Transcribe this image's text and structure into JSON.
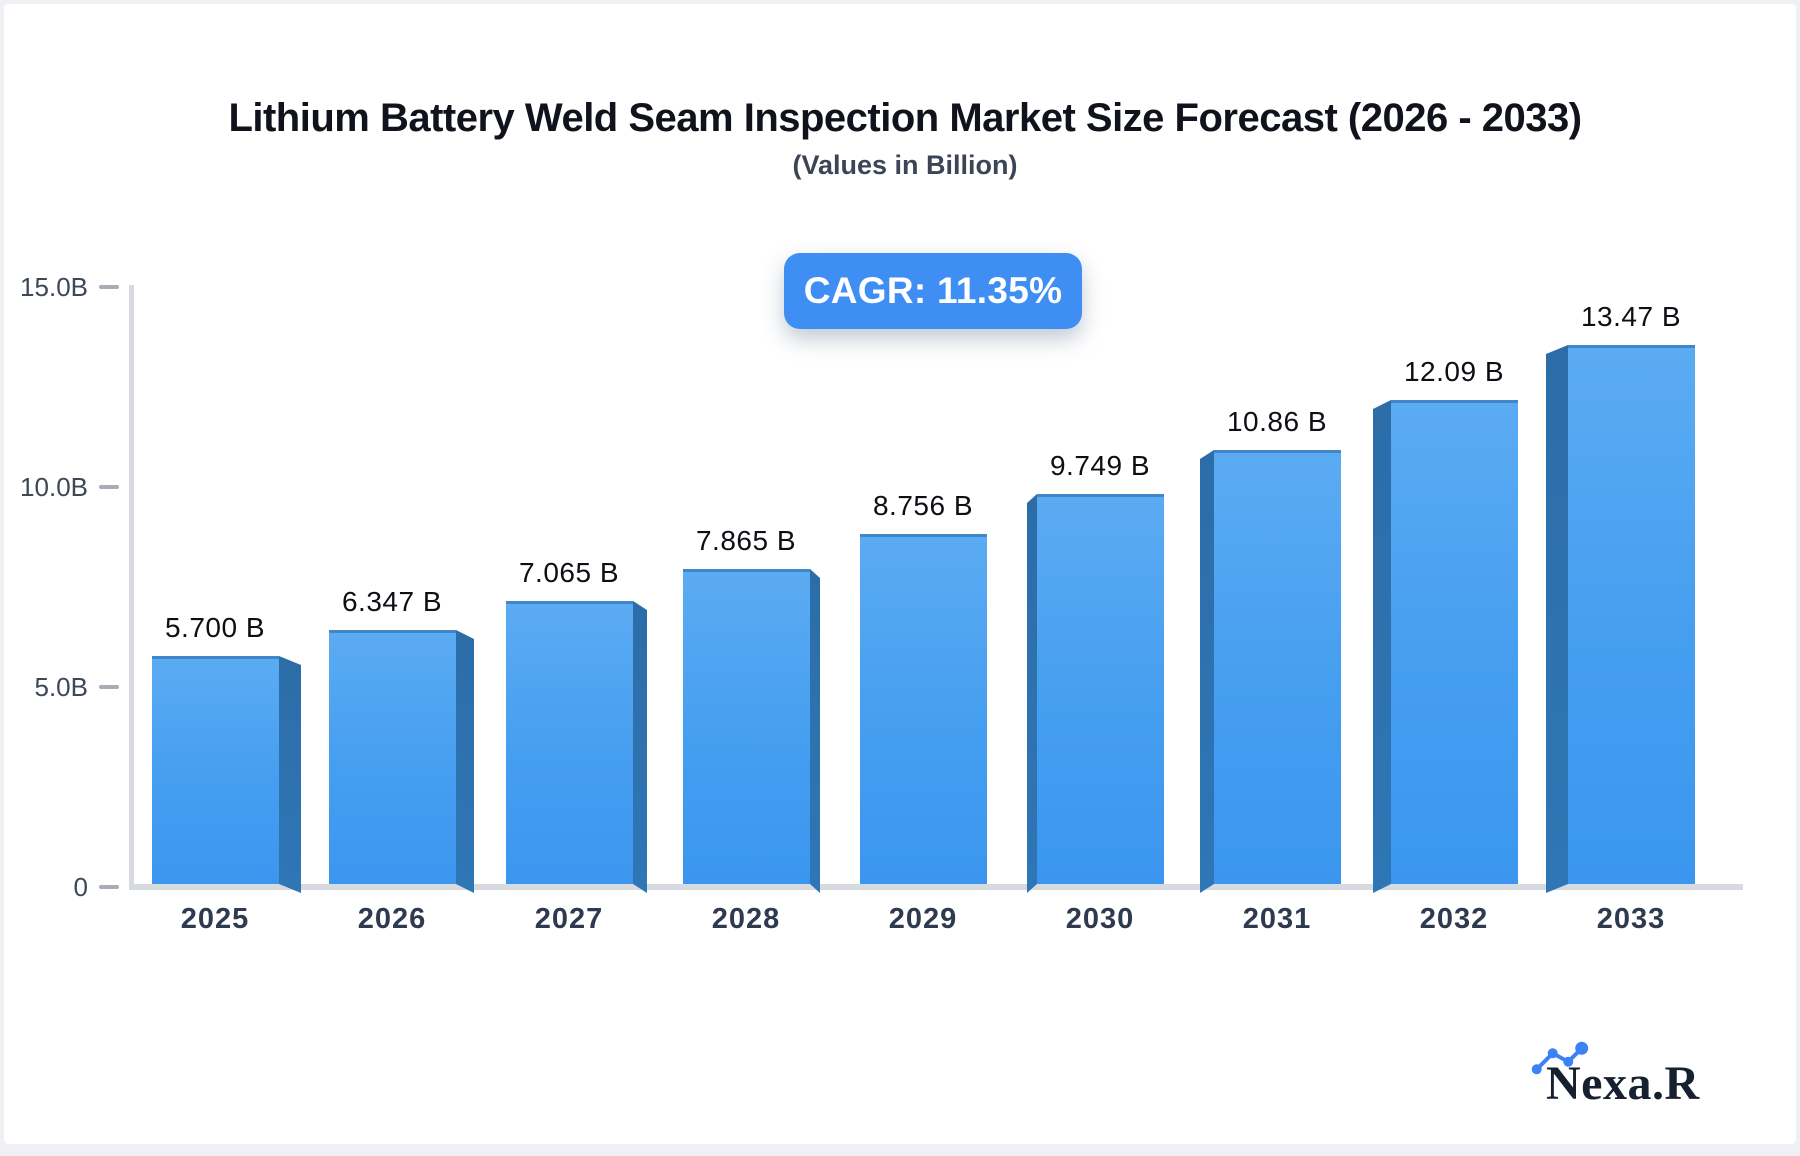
{
  "title": "Lithium Battery Weld Seam Inspection Market Size Forecast (2026 - 2033)",
  "subtitle": "(Values in Billion)",
  "badge": {
    "label": "CAGR: 11.35%",
    "color": "#3f8ef3"
  },
  "logo": {
    "text": "Nexa.R",
    "icon": "zigzag-dots-icon",
    "icon_color": "#3b82f6"
  },
  "chart_data": {
    "type": "bar",
    "categories": [
      "2025",
      "2026",
      "2027",
      "2028",
      "2029",
      "2030",
      "2031",
      "2032",
      "2033"
    ],
    "values": [
      5.7,
      6.347,
      7.065,
      7.865,
      8.756,
      9.749,
      10.86,
      12.09,
      13.47
    ],
    "value_labels": [
      "5.700 B",
      "6.347 B",
      "7.065 B",
      "7.865 B",
      "8.756 B",
      "9.749 B",
      "10.86 B",
      "12.09 B",
      "13.47 B"
    ],
    "y_ticks": [
      {
        "value": 0,
        "label": "0"
      },
      {
        "value": 5,
        "label": "5.0B"
      },
      {
        "value": 10,
        "label": "10.0B"
      },
      {
        "value": 15,
        "label": "15.0B"
      }
    ],
    "ylim": [
      0,
      15
    ],
    "xlabel": "",
    "ylabel": "",
    "grid": false,
    "legend": "none",
    "bar_color_top": "#5babf2",
    "bar_color_bottom": "#3b96ef",
    "bar_side_color": "#2d70ae",
    "bar_top_edge_color": "#4286ca"
  }
}
